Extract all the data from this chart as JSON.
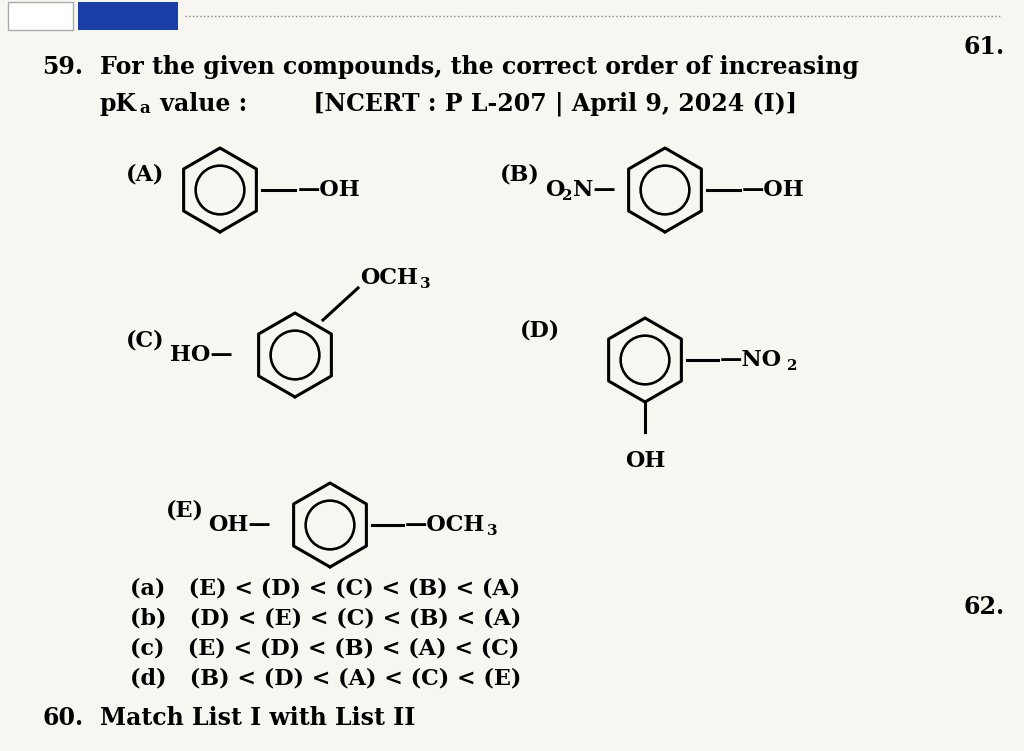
{
  "background_color": "#f8f6f0",
  "text_color": "#000000",
  "question_number_right": "61.",
  "answer_number_right": "62.",
  "options": [
    "(a)   (E) < (D) < (C) < (B) < (A)",
    "(b)   (D) < (E) < (C) < (B) < (A)",
    "(c)   (E) < (D) < (B) < (A) < (C)",
    "(d)   (B) < (D) < (A) < (C) < (E)"
  ]
}
